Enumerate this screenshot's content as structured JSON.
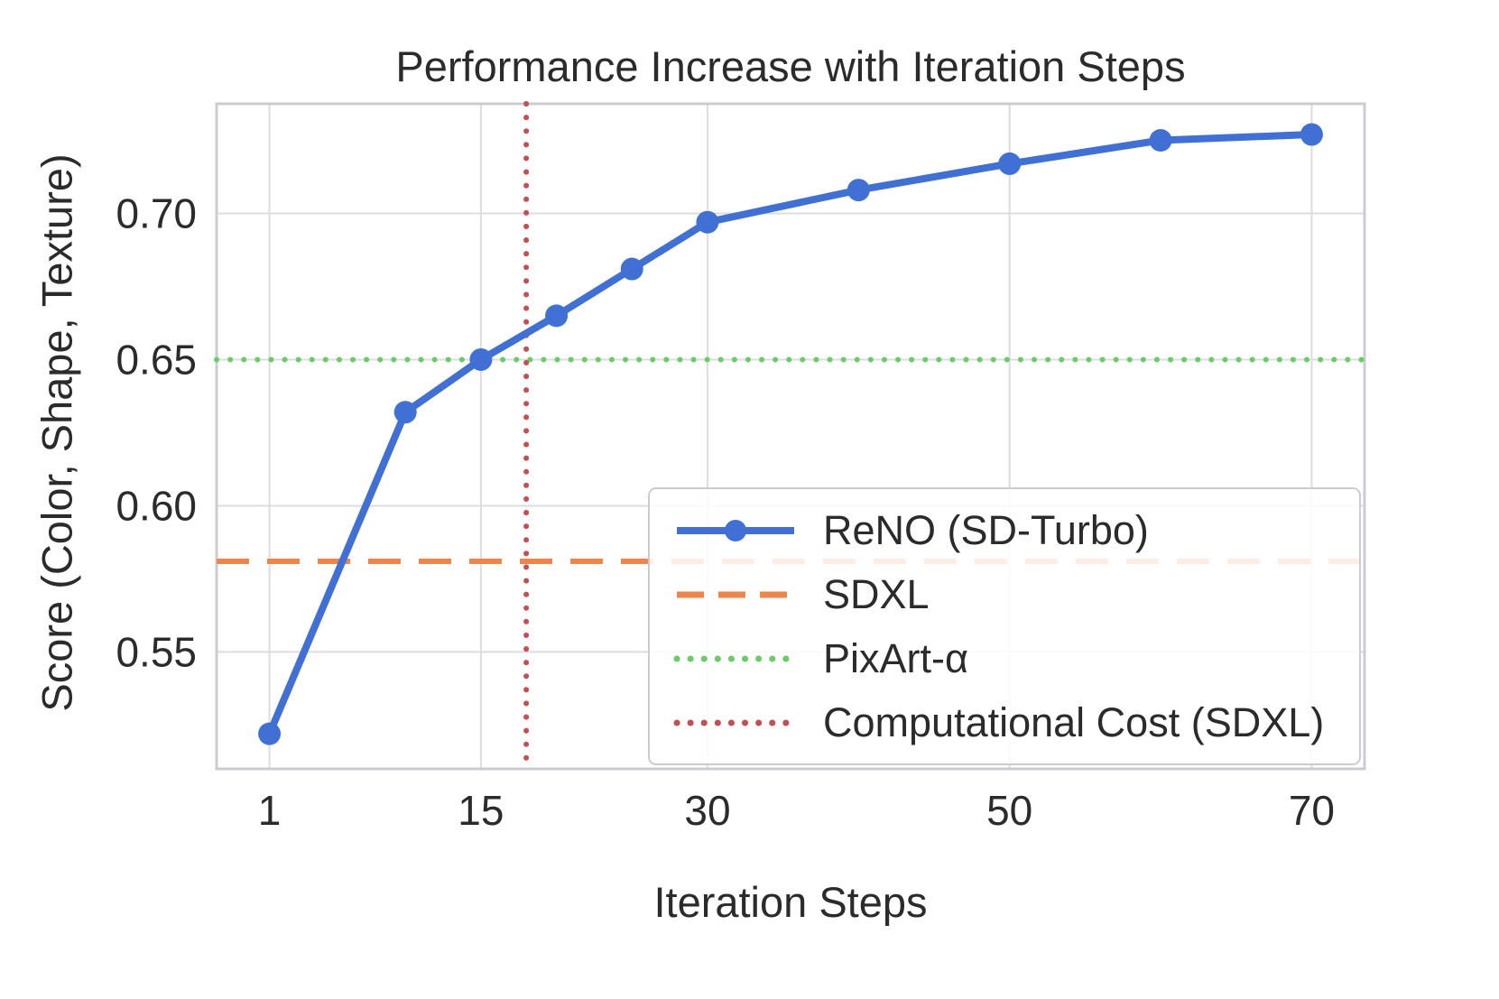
{
  "chart_data": {
    "type": "line",
    "title": "Performance Increase with Iteration Steps",
    "xlabel": "Iteration Steps",
    "ylabel": "Score (Color, Shape, Texture)",
    "xlim": [
      -2.5,
      73.5
    ],
    "ylim": [
      0.51,
      0.7375
    ],
    "x_ticks": [
      1,
      15,
      30,
      50,
      70
    ],
    "y_ticks": [
      0.55,
      0.6,
      0.65,
      0.7
    ],
    "grid": true,
    "series": [
      {
        "name": "ReNO (SD-Turbo)",
        "color": "#4070D4",
        "style": "solid-marker",
        "x": [
          1,
          10,
          15,
          20,
          25,
          30,
          40,
          50,
          60,
          70
        ],
        "y": [
          0.522,
          0.632,
          0.65,
          0.665,
          0.681,
          0.697,
          0.708,
          0.717,
          0.725,
          0.727
        ]
      }
    ],
    "reference_lines": [
      {
        "name": "SDXL",
        "orientation": "horizontal",
        "value": 0.581,
        "style": "dashed",
        "color": "#EE854A"
      },
      {
        "name": "PixArt-α",
        "orientation": "horizontal",
        "value": 0.65,
        "style": "dotted",
        "color": "#6ACC65"
      },
      {
        "name": "Computational Cost (SDXL)",
        "orientation": "vertical",
        "value": 18,
        "style": "dotted",
        "color": "#C44E52"
      }
    ],
    "legend": {
      "position": "lower right",
      "entries": [
        {
          "label": "ReNO (SD-Turbo)",
          "style": "solid-marker",
          "color": "#4070D4"
        },
        {
          "label": "SDXL",
          "style": "dashed",
          "color": "#EE854A"
        },
        {
          "label": "PixArt-α",
          "style": "dotted",
          "color": "#6ACC65"
        },
        {
          "label": "Computational Cost (SDXL)",
          "style": "dotted",
          "color": "#C44E52"
        }
      ]
    },
    "style": {
      "grid_color": "#DCDCE2",
      "border_color": "#CBCBD4",
      "text_color": "#2B2B2B",
      "background": "#FFFFFF"
    }
  }
}
